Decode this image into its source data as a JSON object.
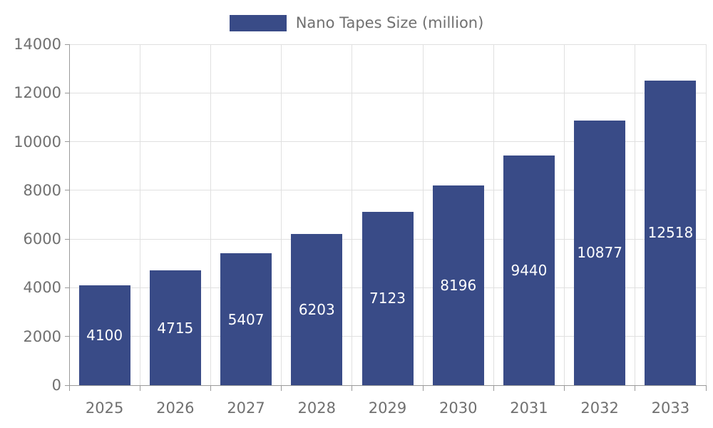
{
  "legend": {
    "label": "Nano Tapes Size (million)"
  },
  "chart_data": {
    "type": "bar",
    "title": "",
    "series_name": "Nano Tapes Size (million)",
    "categories": [
      "2025",
      "2026",
      "2027",
      "2028",
      "2029",
      "2030",
      "2031",
      "2032",
      "2033"
    ],
    "values": [
      4100,
      4715,
      5407,
      6203,
      7123,
      8196,
      9440,
      10877,
      12518
    ],
    "xlabel": "",
    "ylabel": "",
    "ylim": [
      0,
      14000
    ],
    "ytick_step": 2000,
    "yticks": [
      0,
      2000,
      4000,
      6000,
      8000,
      10000,
      12000,
      14000
    ],
    "grid": true,
    "legend_position": "top-center",
    "bar_color": "#394B87",
    "value_label_color": "#FFFFFF",
    "axis_text_color": "#707070",
    "grid_color": "#E0E0E0",
    "axis_line_color": "#9A9A9A"
  }
}
